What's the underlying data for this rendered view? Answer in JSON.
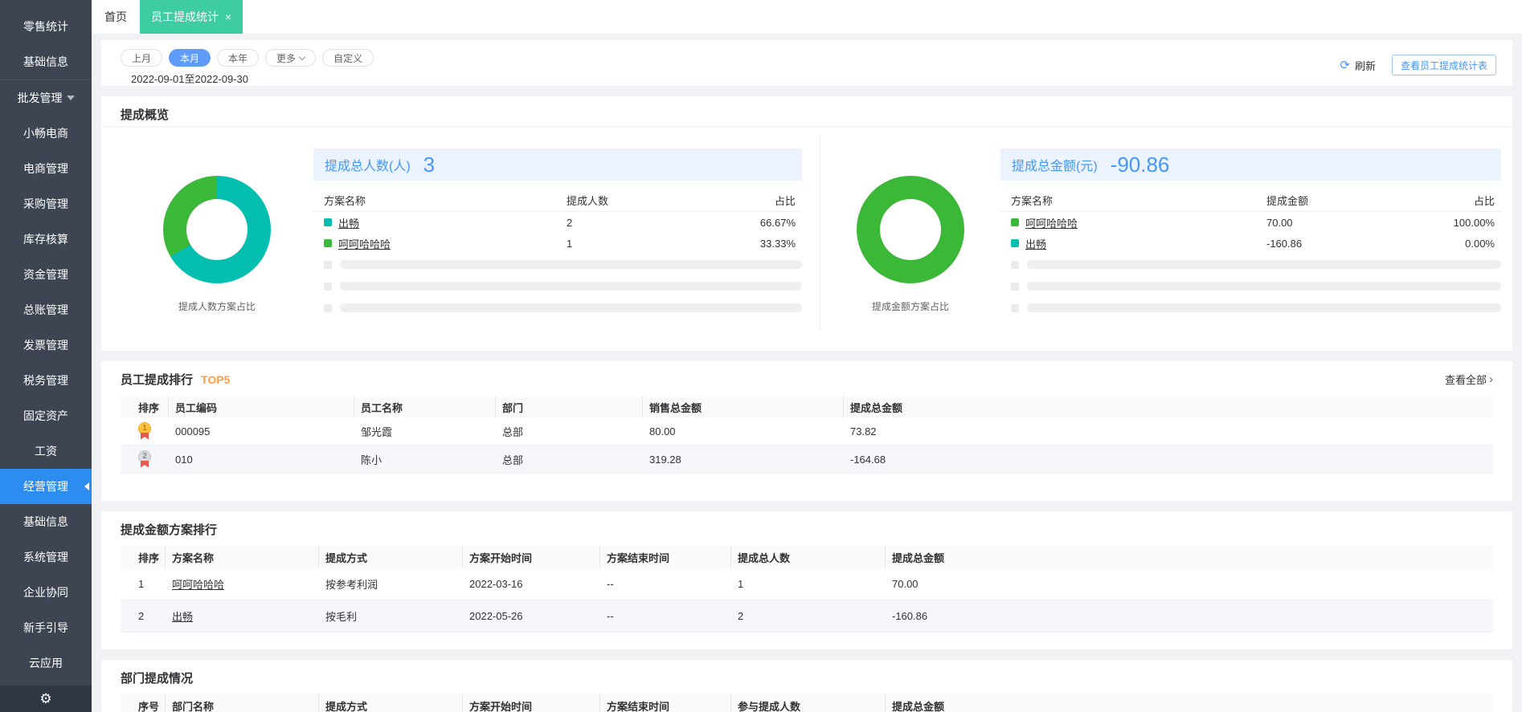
{
  "colors": {
    "accent_blue": "#4796F2",
    "pill_active_blue": "#5E9CF8",
    "tab_green": "#3ECCA2",
    "sidebar_active_blue": "#2D8CF0",
    "teal": "#04BEB0",
    "green": "#3CB839",
    "orange": "#FF9E3E",
    "stat_band_bg": "#EAF3FE"
  },
  "icons": {
    "gear": "⚙",
    "refresh": "⟳",
    "close": "×",
    "view_all_chevron": "›"
  },
  "sidebar": {
    "top_items": [
      "零售统计",
      "基础信息"
    ],
    "menu_items": [
      "批发管理",
      "小畅电商",
      "电商管理",
      "采购管理",
      "库存核算",
      "资金管理",
      "总账管理",
      "发票管理",
      "税务管理",
      "固定资产",
      "工资",
      "经营管理",
      "基础信息",
      "系统管理",
      "企业协同",
      "新手引导",
      "云应用"
    ],
    "active_menu_item": "经营管理"
  },
  "tabs": {
    "home": "首页",
    "active": {
      "label": "员工提成统计",
      "close": "×"
    }
  },
  "toolbar": {
    "pills": [
      "上月",
      "本月",
      "本年",
      "更多",
      "自定义"
    ],
    "active_pill": "本月",
    "date_range": "2022-09-01至2022-09-30",
    "refresh_label": "刷新",
    "view_table_button": "查看员工提成统计表"
  },
  "overview": {
    "title": "提成概览",
    "people": {
      "stat_label": "提成总人数(人)",
      "stat_value": "3",
      "caption": "提成人数方案占比",
      "headers": [
        "方案名称",
        "提成人数",
        "占比"
      ],
      "rows": [
        {
          "name": "出畅",
          "color": "#04BEB0",
          "count": "2",
          "pct": "66.67%"
        },
        {
          "name": "呵呵哈哈哈",
          "color": "#3CB839",
          "count": "1",
          "pct": "33.33%"
        }
      ]
    },
    "amount": {
      "stat_label": "提成总金额(元)",
      "stat_value": "-90.86",
      "caption": "提成金额方案占比",
      "headers": [
        "方案名称",
        "提成金额",
        "占比"
      ],
      "rows": [
        {
          "name": "呵呵哈哈哈",
          "color": "#3CB839",
          "amount": "70.00",
          "pct": "100.00%"
        },
        {
          "name": "出畅",
          "color": "#04BEB0",
          "amount": "-160.86",
          "pct": "0.00%"
        }
      ]
    }
  },
  "chart_data": [
    {
      "type": "pie",
      "title": "提成人数方案占比",
      "slices": [
        {
          "label": "出畅",
          "value": 2,
          "pct": 66.67,
          "color": "#04BEB0"
        },
        {
          "label": "呵呵哈哈哈",
          "value": 1,
          "pct": 33.33,
          "color": "#3CB839"
        }
      ]
    },
    {
      "type": "pie",
      "title": "提成金额方案占比",
      "slices": [
        {
          "label": "呵呵哈哈哈",
          "value": 70.0,
          "pct": 100,
          "color": "#3CB839"
        },
        {
          "label": "出畅",
          "value": -160.86,
          "pct": 0,
          "color": "#04BEB0"
        }
      ]
    }
  ],
  "employee_ranking": {
    "title": "员工提成排行",
    "badge": "TOP5",
    "view_all": "查看全部",
    "headers": [
      "排序",
      "员工编码",
      "员工名称",
      "部门",
      "销售总金额",
      "提成总金额"
    ],
    "rows": [
      {
        "medal": "gold",
        "rank": "1",
        "code": "000095",
        "name": "邹光霞",
        "dept": "总部",
        "sales": "80.00",
        "commission": "73.82"
      },
      {
        "medal": "silver",
        "rank": "2",
        "code": "010",
        "name": "陈小",
        "dept": "总部",
        "sales": "319.28",
        "commission": "-164.68"
      }
    ]
  },
  "plan_ranking": {
    "title": "提成金额方案排行",
    "headers": [
      "排序",
      "方案名称",
      "提成方式",
      "方案开始时间",
      "方案结束时间",
      "提成总人数",
      "提成总金额"
    ],
    "rows": [
      {
        "rank": "1",
        "name": "呵呵哈哈哈",
        "method": "按参考利润",
        "start": "2022-03-16",
        "end": "--",
        "people": "1",
        "amount": "70.00"
      },
      {
        "rank": "2",
        "name": "出畅",
        "method": "按毛利",
        "start": "2022-05-26",
        "end": "--",
        "people": "2",
        "amount": "-160.86"
      }
    ]
  },
  "department": {
    "title": "部门提成情况",
    "headers": [
      "序号",
      "部门名称",
      "提成方式",
      "方案开始时间",
      "方案结束时间",
      "参与提成人数",
      "提成总金额"
    ]
  }
}
